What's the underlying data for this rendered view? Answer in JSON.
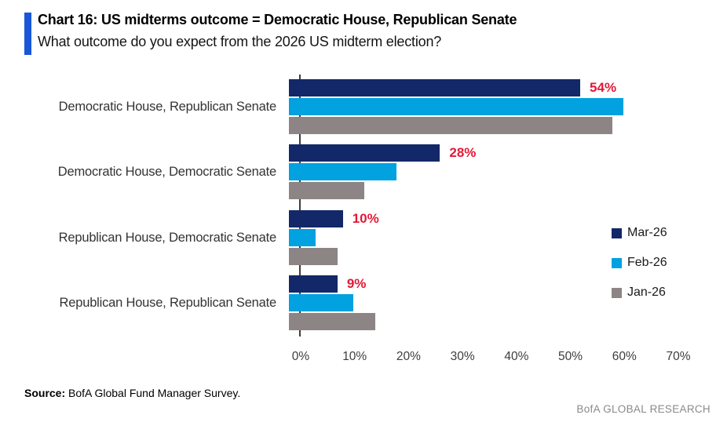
{
  "header": {
    "title": "Chart 16: US midterms outcome = Democratic House, Republican Senate",
    "subtitle": "What outcome do you expect from the 2026 US midterm election?",
    "accent_color": "#1757d8"
  },
  "chart_data": {
    "type": "bar",
    "orientation": "horizontal",
    "categories": [
      "Democratic House, Republican Senate",
      "Democratic House, Democratic Senate",
      "Republican House, Democratic Senate",
      "Republican House, Republican Senate"
    ],
    "series": [
      {
        "name": "Mar-26",
        "color": "#122868",
        "values": [
          54,
          28,
          10,
          9
        ]
      },
      {
        "name": "Feb-26",
        "color": "#02a1e0",
        "values": [
          62,
          20,
          5,
          12
        ]
      },
      {
        "name": "Jan-26",
        "color": "#8d8585",
        "values": [
          60,
          14,
          9,
          16
        ]
      }
    ],
    "data_labels": {
      "series": "Mar-26",
      "labels": [
        "54%",
        "28%",
        "10%",
        "9%"
      ],
      "color": "#e31837"
    },
    "x_axis": {
      "min": 0,
      "max": 70,
      "ticks": [
        "0%",
        "10%",
        "20%",
        "30%",
        "40%",
        "50%",
        "60%",
        "70%"
      ]
    },
    "legend_position": "right",
    "grid": false
  },
  "footer": {
    "source_label": "Source:",
    "source_text": " BofA Global Fund Manager Survey.",
    "brand": "BofA GLOBAL RESEARCH"
  }
}
